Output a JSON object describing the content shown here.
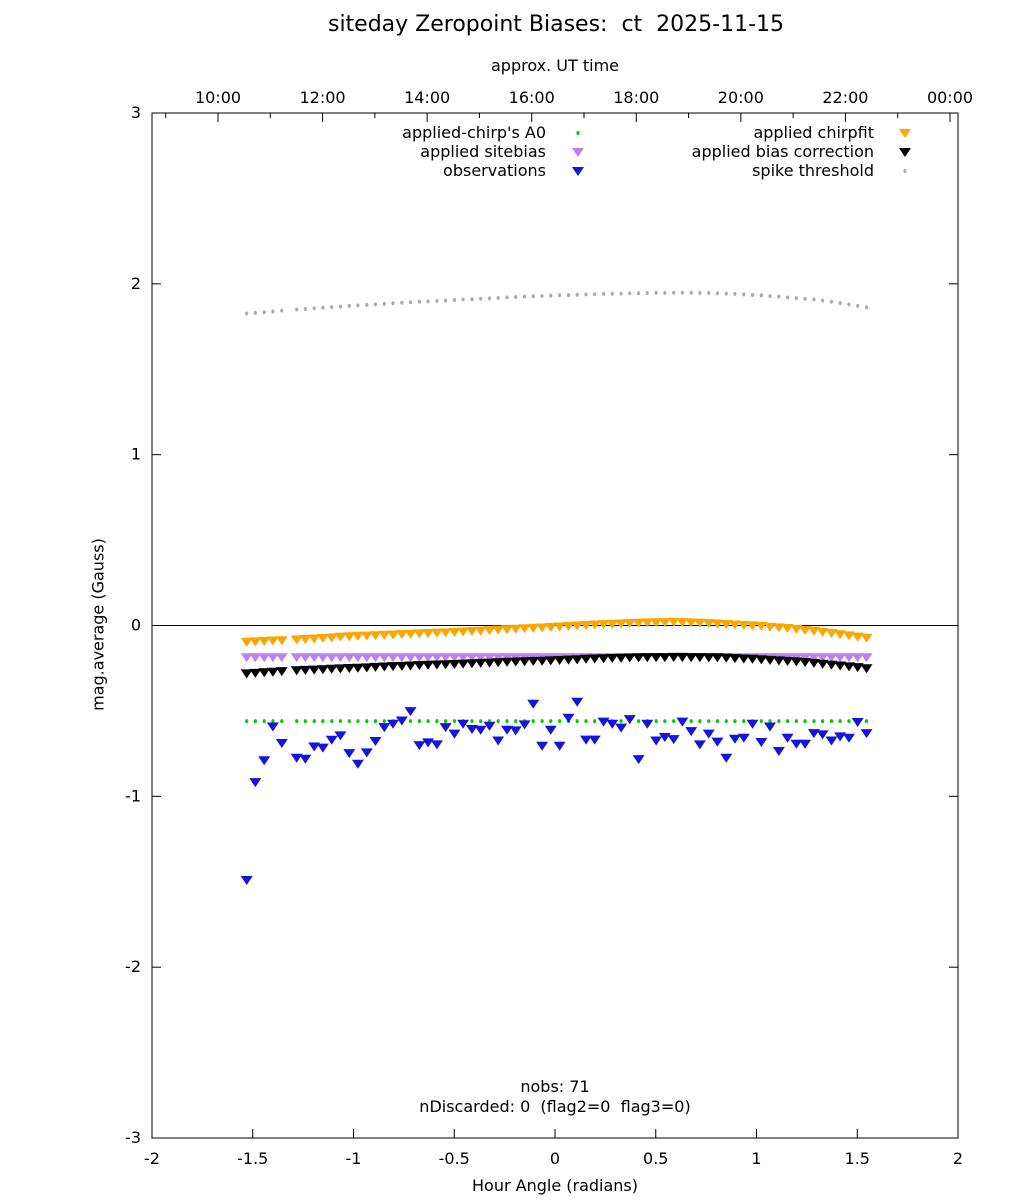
{
  "title": "siteday Zeropoint Biases:  ct  2025-11-15",
  "top_axis": {
    "label": "approx. UT time",
    "ticks": [
      "10:00",
      "12:00",
      "14:00",
      "16:00",
      "18:00",
      "20:00",
      "22:00",
      "00:00"
    ]
  },
  "bottom_axis": {
    "label": "Hour Angle (radians)",
    "ticks": [
      "-2",
      "-1.5",
      "-1",
      "-0.5",
      "0",
      "0.5",
      "1",
      "1.5",
      "2"
    ]
  },
  "left_axis": {
    "label": "mag.average (Gauss)",
    "ticks": [
      "3",
      "2",
      "1",
      "0",
      "-1",
      "-2",
      "-3"
    ]
  },
  "annotations": {
    "nobs": "nobs: 71",
    "ndiscarded": "nDiscarded: 0  (flag2=0  flag3=0)"
  },
  "legend": {
    "left_column": [
      "applied-chirp's A0",
      "applied sitebias",
      "observations"
    ],
    "right_column": [
      "applied chirpfit",
      "applied bias correction",
      "spike threshold"
    ]
  },
  "colors": {
    "green": "#00cc00",
    "orange": "#ffa500",
    "purple": "#be82f0",
    "blue": "#1414dc",
    "black": "#000000",
    "gray": "#ababab"
  },
  "chart_data": {
    "type": "scatter",
    "title": "siteday Zeropoint Biases:  ct  2025-11-15",
    "xlabel": "Hour Angle (radians)",
    "x2label": "approx. UT time",
    "ylabel": "mag.average (Gauss)",
    "xlim": [
      -2,
      2
    ],
    "ylim": [
      -3,
      3
    ],
    "grid": false,
    "legend_position": "top-inside",
    "x": [
      -1.53,
      -1.487,
      -1.443,
      -1.4,
      -1.356,
      -1.282,
      -1.239,
      -1.195,
      -1.152,
      -1.108,
      -1.065,
      -1.021,
      -0.978,
      -0.934,
      -0.891,
      -0.847,
      -0.804,
      -0.76,
      -0.717,
      -0.673,
      -0.63,
      -0.586,
      -0.543,
      -0.499,
      -0.456,
      -0.412,
      -0.369,
      -0.325,
      -0.282,
      -0.238,
      -0.195,
      -0.151,
      -0.108,
      -0.064,
      -0.021,
      0.023,
      0.067,
      0.11,
      0.154,
      0.197,
      0.241,
      0.284,
      0.328,
      0.371,
      0.415,
      0.458,
      0.502,
      0.545,
      0.589,
      0.632,
      0.676,
      0.719,
      0.763,
      0.806,
      0.85,
      0.893,
      0.937,
      0.98,
      1.024,
      1.067,
      1.111,
      1.154,
      1.198,
      1.241,
      1.285,
      1.328,
      1.372,
      1.415,
      1.459,
      1.502,
      1.546
    ],
    "series": [
      {
        "name": "spike threshold",
        "marker": "dot",
        "color": "#ababab",
        "y": [
          1.826,
          1.83,
          1.834,
          1.838,
          1.843,
          1.85,
          1.853,
          1.857,
          1.86,
          1.864,
          1.867,
          1.871,
          1.874,
          1.877,
          1.88,
          1.883,
          1.886,
          1.889,
          1.892,
          1.895,
          1.897,
          1.9,
          1.902,
          1.905,
          1.908,
          1.91,
          1.913,
          1.915,
          1.918,
          1.921,
          1.923,
          1.925,
          1.927,
          1.929,
          1.931,
          1.933,
          1.934,
          1.936,
          1.938,
          1.939,
          1.941,
          1.942,
          1.943,
          1.944,
          1.945,
          1.946,
          1.947,
          1.947,
          1.948,
          1.948,
          1.948,
          1.947,
          1.946,
          1.944,
          1.943,
          1.941,
          1.938,
          1.935,
          1.932,
          1.928,
          1.925,
          1.921,
          1.916,
          1.912,
          1.908,
          1.902,
          1.895,
          1.888,
          1.88,
          1.871,
          1.862
        ]
      },
      {
        "name": "applied chirpfit",
        "marker": "triangle-down",
        "color": "#ffa500",
        "y": [
          -0.095,
          -0.093,
          -0.09,
          -0.088,
          -0.086,
          -0.082,
          -0.079,
          -0.076,
          -0.073,
          -0.07,
          -0.066,
          -0.063,
          -0.061,
          -0.059,
          -0.057,
          -0.055,
          -0.053,
          -0.05,
          -0.048,
          -0.046,
          -0.044,
          -0.042,
          -0.04,
          -0.038,
          -0.035,
          -0.032,
          -0.03,
          -0.027,
          -0.024,
          -0.021,
          -0.019,
          -0.016,
          -0.014,
          -0.012,
          -0.009,
          -0.006,
          -0.003,
          0.0,
          0.003,
          0.006,
          0.008,
          0.01,
          0.012,
          0.015,
          0.016,
          0.018,
          0.019,
          0.02,
          0.022,
          0.02,
          0.018,
          0.016,
          0.014,
          0.012,
          0.009,
          0.006,
          0.004,
          0.001,
          -0.002,
          -0.007,
          -0.011,
          -0.015,
          -0.02,
          -0.026,
          -0.031,
          -0.037,
          -0.044,
          -0.051,
          -0.058,
          -0.065,
          -0.072
        ]
      },
      {
        "name": "applied sitebias",
        "marker": "triangle-down",
        "color": "#be82f0",
        "y": [
          -0.186,
          -0.186,
          -0.186,
          -0.186,
          -0.186,
          -0.186,
          -0.186,
          -0.186,
          -0.186,
          -0.186,
          -0.186,
          -0.186,
          -0.186,
          -0.186,
          -0.186,
          -0.186,
          -0.186,
          -0.186,
          -0.186,
          -0.186,
          -0.186,
          -0.186,
          -0.186,
          -0.186,
          -0.186,
          -0.186,
          -0.186,
          -0.186,
          -0.186,
          -0.186,
          -0.186,
          -0.186,
          -0.186,
          -0.186,
          -0.186,
          -0.186,
          -0.186,
          -0.186,
          -0.186,
          -0.186,
          -0.186,
          -0.186,
          -0.186,
          -0.186,
          -0.186,
          -0.186,
          -0.186,
          -0.186,
          -0.186,
          -0.186,
          -0.186,
          -0.186,
          -0.186,
          -0.186,
          -0.186,
          -0.186,
          -0.186,
          -0.186,
          -0.186,
          -0.186,
          -0.186,
          -0.186,
          -0.186,
          -0.186,
          -0.186,
          -0.186,
          -0.186,
          -0.186,
          -0.186,
          -0.186,
          -0.186
        ]
      },
      {
        "name": "applied bias correction",
        "marker": "triangle-down",
        "color": "#000000",
        "y": [
          -0.28,
          -0.277,
          -0.274,
          -0.271,
          -0.267,
          -0.262,
          -0.26,
          -0.258,
          -0.256,
          -0.253,
          -0.251,
          -0.249,
          -0.247,
          -0.245,
          -0.242,
          -0.24,
          -0.238,
          -0.236,
          -0.234,
          -0.232,
          -0.23,
          -0.228,
          -0.227,
          -0.225,
          -0.223,
          -0.221,
          -0.219,
          -0.217,
          -0.215,
          -0.212,
          -0.211,
          -0.209,
          -0.207,
          -0.206,
          -0.204,
          -0.202,
          -0.2,
          -0.198,
          -0.195,
          -0.193,
          -0.192,
          -0.19,
          -0.189,
          -0.187,
          -0.186,
          -0.185,
          -0.185,
          -0.185,
          -0.184,
          -0.184,
          -0.185,
          -0.185,
          -0.186,
          -0.186,
          -0.188,
          -0.191,
          -0.193,
          -0.195,
          -0.198,
          -0.201,
          -0.204,
          -0.207,
          -0.21,
          -0.214,
          -0.219,
          -0.224,
          -0.229,
          -0.234,
          -0.239,
          -0.244,
          -0.25
        ]
      },
      {
        "name": "applied-chirp's A0",
        "marker": "dot",
        "color": "#00cc00",
        "y": [
          -0.56,
          -0.56,
          -0.56,
          -0.56,
          -0.56,
          -0.56,
          -0.56,
          -0.56,
          -0.56,
          -0.56,
          -0.56,
          -0.56,
          -0.56,
          -0.56,
          -0.56,
          -0.56,
          -0.56,
          -0.56,
          -0.56,
          -0.56,
          -0.56,
          -0.56,
          -0.56,
          -0.56,
          -0.56,
          -0.56,
          -0.56,
          -0.56,
          -0.56,
          -0.56,
          -0.56,
          -0.56,
          -0.56,
          -0.56,
          -0.56,
          -0.56,
          -0.56,
          -0.56,
          -0.56,
          -0.56,
          -0.56,
          -0.56,
          -0.56,
          -0.56,
          -0.56,
          -0.56,
          -0.56,
          -0.56,
          -0.56,
          -0.56,
          -0.56,
          -0.56,
          -0.56,
          -0.56,
          -0.56,
          -0.56,
          -0.56,
          -0.56,
          -0.56,
          -0.56,
          -0.56,
          -0.56,
          -0.56,
          -0.56,
          -0.56,
          -0.56,
          -0.56,
          -0.56,
          -0.56,
          -0.56,
          -0.56
        ]
      },
      {
        "name": "observations",
        "marker": "triangle-down",
        "color": "#1414dc",
        "y": [
          -1.49,
          -0.917,
          -0.789,
          -0.591,
          -0.688,
          -0.774,
          -0.78,
          -0.708,
          -0.715,
          -0.669,
          -0.643,
          -0.747,
          -0.809,
          -0.743,
          -0.676,
          -0.595,
          -0.575,
          -0.556,
          -0.501,
          -0.7,
          -0.684,
          -0.696,
          -0.595,
          -0.633,
          -0.575,
          -0.606,
          -0.61,
          -0.587,
          -0.673,
          -0.61,
          -0.614,
          -0.579,
          -0.458,
          -0.704,
          -0.61,
          -0.704,
          -0.54,
          -0.446,
          -0.668,
          -0.668,
          -0.563,
          -0.575,
          -0.598,
          -0.548,
          -0.782,
          -0.575,
          -0.673,
          -0.653,
          -0.665,
          -0.563,
          -0.618,
          -0.696,
          -0.633,
          -0.68,
          -0.774,
          -0.663,
          -0.657,
          -0.575,
          -0.682,
          -0.591,
          -0.735,
          -0.657,
          -0.692,
          -0.692,
          -0.63,
          -0.637,
          -0.673,
          -0.649,
          -0.657,
          -0.565,
          -0.63
        ]
      }
    ]
  }
}
